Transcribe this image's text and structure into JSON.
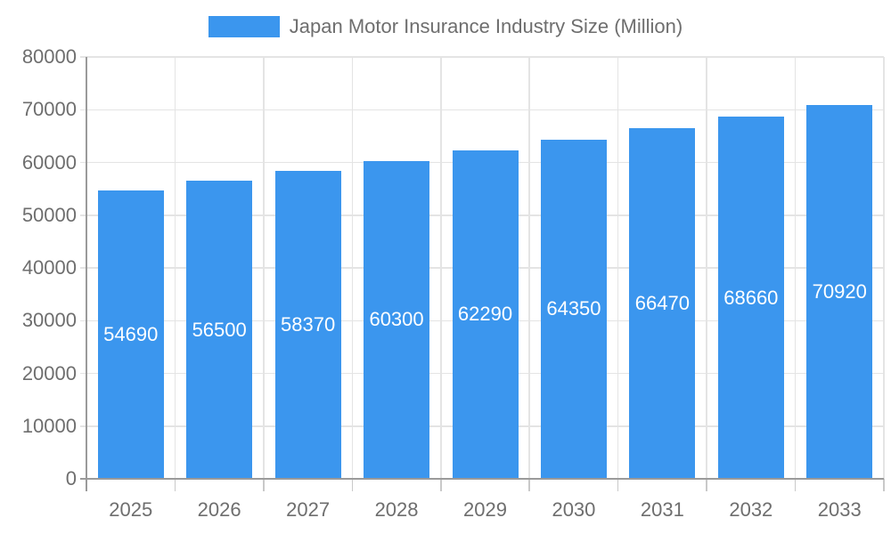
{
  "chart_data": {
    "type": "bar",
    "title": "Japan Motor Insurance Industry Size (Million)",
    "categories": [
      "2025",
      "2026",
      "2027",
      "2028",
      "2029",
      "2030",
      "2031",
      "2032",
      "2033"
    ],
    "series": [
      {
        "name": "Japan Motor Insurance Industry Size (Million)",
        "values": [
          54690,
          56500,
          58370,
          60300,
          62290,
          64350,
          66470,
          68660,
          70920
        ]
      }
    ],
    "value_labels": [
      "54690",
      "56500",
      "58370",
      "60300",
      "62290",
      "64350",
      "66470",
      "68660",
      "70920"
    ],
    "xlabel": "",
    "ylabel": "",
    "ylim": [
      0,
      80000
    ],
    "ytick_step": 10000,
    "ytick_labels": [
      "0",
      "10000",
      "20000",
      "30000",
      "40000",
      "50000",
      "60000",
      "70000",
      "80000"
    ],
    "grid": "horizontal and vertical light gray gridlines",
    "legend_position": "top-center",
    "colors": {
      "bar": "#3b96ee",
      "gridline": "#e4e4e4",
      "axis_line": "#9a9a9a",
      "category_tick": "#c9c9c9",
      "axis_text": "#6e6e6e",
      "legend_text": "#6e6e6e",
      "value_label_text": "#ffffff",
      "background": "#ffffff"
    }
  }
}
